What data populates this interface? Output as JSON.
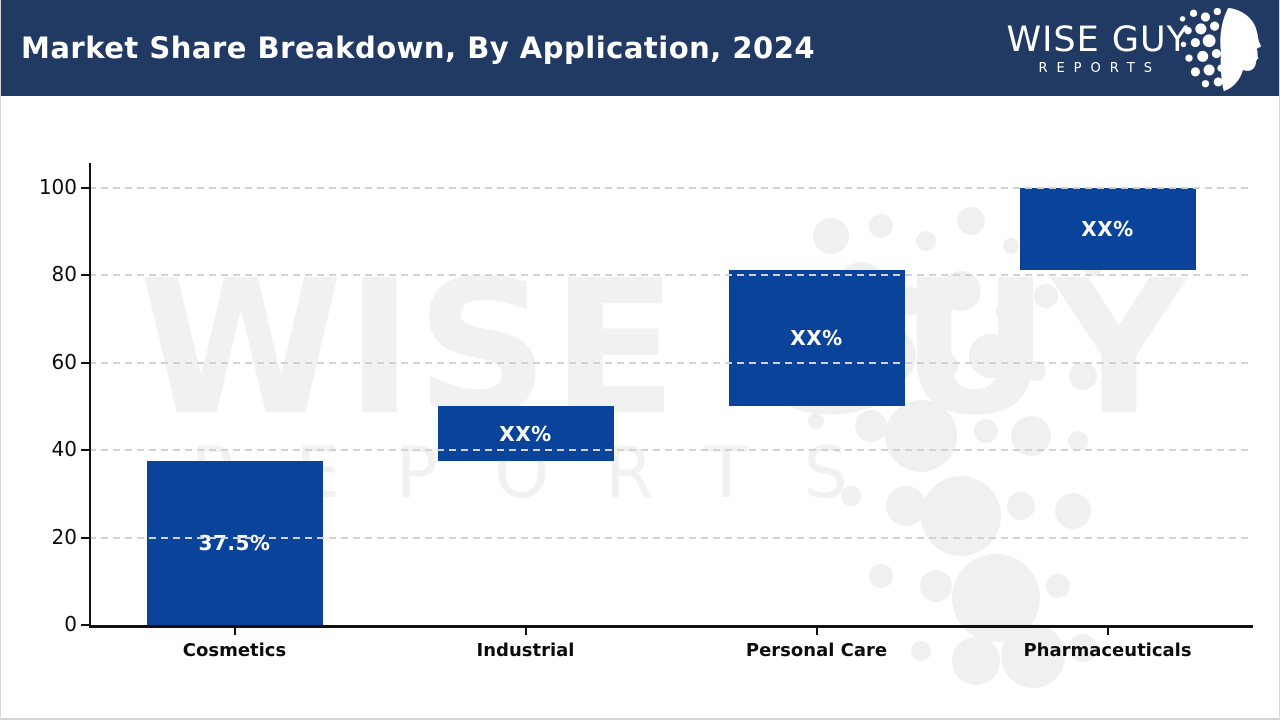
{
  "header": {
    "title": "Market Share Breakdown, By Application, 2024",
    "brand": {
      "name": "WISE GUY",
      "sub": "REPORTS"
    }
  },
  "watermark": {
    "line1": "WISE GUY",
    "line2": "REPORTS"
  },
  "chart_data": {
    "type": "bar",
    "variant": "floating-waterfall",
    "title": "Market Share Breakdown, By Application, 2024",
    "categories": [
      "Cosmetics",
      "Industrial",
      "Personal Care",
      "Pharmaceuticals"
    ],
    "segments": [
      {
        "category": "Cosmetics",
        "start": 0,
        "end": 37.5,
        "label": "37.5%"
      },
      {
        "category": "Industrial",
        "start": 37.5,
        "end": 50,
        "label": "XX%"
      },
      {
        "category": "Personal Care",
        "start": 50,
        "end": 81.25,
        "label": "XX%"
      },
      {
        "category": "Pharmaceuticals",
        "start": 81.25,
        "end": 100,
        "label": "XX%"
      }
    ],
    "yticks": [
      0,
      20,
      40,
      60,
      80,
      100
    ],
    "ylim": [
      0,
      105
    ],
    "xlabel": "",
    "ylabel": "",
    "legend": null,
    "grid": {
      "axis": "y",
      "style": "dashed",
      "drawn_over_bars": true
    },
    "colors": {
      "bar": "#09439a",
      "bar_label": "#ffffff",
      "grid": "#d2d2d2",
      "axis": "#111111",
      "header_bg": "#213a63",
      "watermark": "#f1f1f1"
    }
  }
}
